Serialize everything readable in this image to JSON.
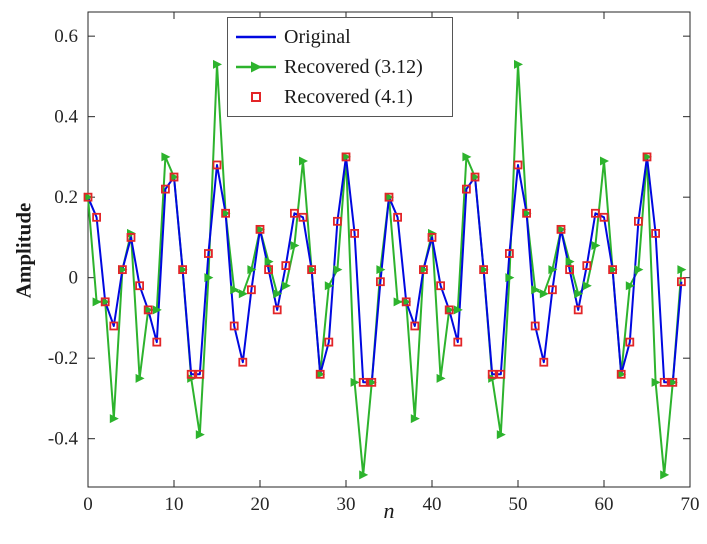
{
  "figure": {
    "background": "#ffffff",
    "axis_color": "#262626"
  },
  "chart_data": {
    "type": "line",
    "title": "",
    "xlabel": "n",
    "ylabel": "Amplitude",
    "xlim": [
      0,
      70
    ],
    "ylim": [
      -0.52,
      0.66
    ],
    "xticks": [
      0,
      10,
      20,
      30,
      40,
      50,
      60,
      70
    ],
    "yticks": [
      -0.4,
      -0.2,
      0,
      0.2,
      0.4,
      0.6
    ],
    "grid": false,
    "legend_position": "top-center-inside",
    "x": [
      0,
      1,
      2,
      3,
      4,
      5,
      6,
      7,
      8,
      9,
      10,
      11,
      12,
      13,
      14,
      15,
      16,
      17,
      18,
      19,
      20,
      21,
      22,
      23,
      24,
      25,
      26,
      27,
      28,
      29,
      30,
      31,
      32,
      33,
      34,
      35,
      36,
      37,
      38,
      39,
      40,
      41,
      42,
      43,
      44,
      45,
      46,
      47,
      48,
      49,
      50,
      51,
      52,
      53,
      54,
      55,
      56,
      57,
      58,
      59,
      60,
      61,
      62,
      63,
      64,
      65,
      66,
      67,
      68,
      69
    ],
    "series": [
      {
        "name": "Original",
        "color": "#0008e0",
        "line": true,
        "line_width": 2,
        "marker": "none",
        "values": [
          0.2,
          0.15,
          -0.06,
          -0.12,
          0.02,
          0.1,
          -0.02,
          -0.08,
          -0.16,
          0.22,
          0.25,
          0.02,
          -0.24,
          -0.24,
          0.06,
          0.28,
          0.16,
          -0.12,
          -0.21,
          -0.03,
          0.12,
          0.02,
          -0.08,
          0.03,
          0.16,
          0.15,
          0.02,
          -0.24,
          -0.16,
          0.14,
          0.3,
          0.11,
          -0.26,
          -0.26,
          -0.01,
          0.2,
          0.15,
          -0.06,
          -0.12,
          0.02,
          0.1,
          -0.02,
          -0.08,
          -0.16,
          0.22,
          0.25,
          0.02,
          -0.24,
          -0.24,
          0.06,
          0.28,
          0.16,
          -0.12,
          -0.21,
          -0.03,
          0.12,
          0.02,
          -0.08,
          0.03,
          0.16,
          0.15,
          0.02,
          -0.24,
          -0.16,
          0.14,
          0.3,
          0.11,
          -0.26,
          -0.26,
          -0.01
        ]
      },
      {
        "name": "Recovered (3.12)",
        "color": "#2db32d",
        "line": true,
        "line_width": 2,
        "marker": "triangle-right",
        "values": [
          0.2,
          -0.06,
          -0.06,
          -0.35,
          0.02,
          0.11,
          -0.25,
          -0.08,
          -0.08,
          0.3,
          0.25,
          0.02,
          -0.25,
          -0.39,
          0,
          0.53,
          0.16,
          -0.03,
          -0.04,
          0.02,
          0.12,
          0.04,
          -0.04,
          -0.02,
          0.08,
          0.29,
          0.02,
          -0.24,
          -0.02,
          0.02,
          0.3,
          -0.26,
          -0.49,
          -0.26,
          0.02,
          0.2,
          -0.06,
          -0.06,
          -0.35,
          0.02,
          0.11,
          -0.25,
          -0.08,
          -0.08,
          0.3,
          0.25,
          0.02,
          -0.25,
          -0.39,
          0,
          0.53,
          0.16,
          -0.03,
          -0.04,
          0.02,
          0.12,
          0.04,
          -0.04,
          -0.02,
          0.08,
          0.29,
          0.02,
          -0.24,
          -0.02,
          0.02,
          0.3,
          -0.26,
          -0.49,
          -0.26,
          0.02
        ]
      },
      {
        "name": "Recovered (4.1)",
        "color": "#e32528",
        "line": false,
        "line_width": 0,
        "marker": "square-open",
        "values": [
          0.2,
          0.15,
          -0.06,
          -0.12,
          0.02,
          0.1,
          -0.02,
          -0.08,
          -0.16,
          0.22,
          0.25,
          0.02,
          -0.24,
          -0.24,
          0.06,
          0.28,
          0.16,
          -0.12,
          -0.21,
          -0.03,
          0.12,
          0.02,
          -0.08,
          0.03,
          0.16,
          0.15,
          0.02,
          -0.24,
          -0.16,
          0.14,
          0.3,
          0.11,
          -0.26,
          -0.26,
          -0.01,
          0.2,
          0.15,
          -0.06,
          -0.12,
          0.02,
          0.1,
          -0.02,
          -0.08,
          -0.16,
          0.22,
          0.25,
          0.02,
          -0.24,
          -0.24,
          0.06,
          0.28,
          0.16,
          -0.12,
          -0.21,
          -0.03,
          0.12,
          0.02,
          -0.08,
          0.03,
          0.16,
          0.15,
          0.02,
          -0.24,
          -0.16,
          0.14,
          0.3,
          0.11,
          -0.26,
          -0.26,
          -0.01
        ]
      }
    ]
  }
}
